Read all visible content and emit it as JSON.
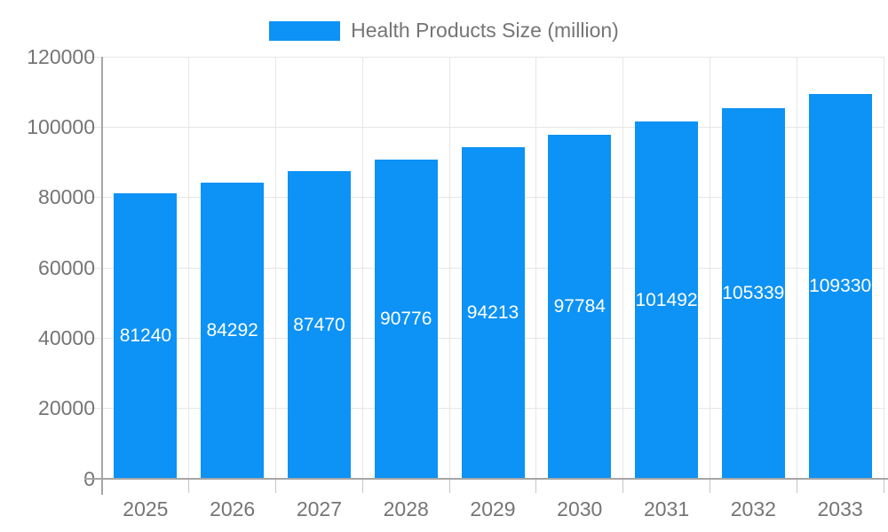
{
  "chart_data": {
    "type": "bar",
    "title": "",
    "legend_position": "top",
    "categories": [
      "2025",
      "2026",
      "2027",
      "2028",
      "2029",
      "2030",
      "2031",
      "2032",
      "2033"
    ],
    "series": [
      {
        "name": "Health Products Size (million)",
        "values": [
          81240,
          84292,
          87470,
          90776,
          94213,
          97784,
          101492,
          105339,
          109330
        ],
        "color": "#0d92f5"
      }
    ],
    "value_labels_shown": true,
    "value_label_color": "#ffffff",
    "xlabel": "",
    "ylabel": "",
    "ylim": [
      0,
      120000
    ],
    "yticks": [
      0,
      20000,
      40000,
      60000,
      80000,
      100000,
      120000
    ],
    "grid": true,
    "gridline_color": "#e6e6e6",
    "axis_line_color": "#a6a6a6",
    "axis_text_color": "#757575"
  }
}
